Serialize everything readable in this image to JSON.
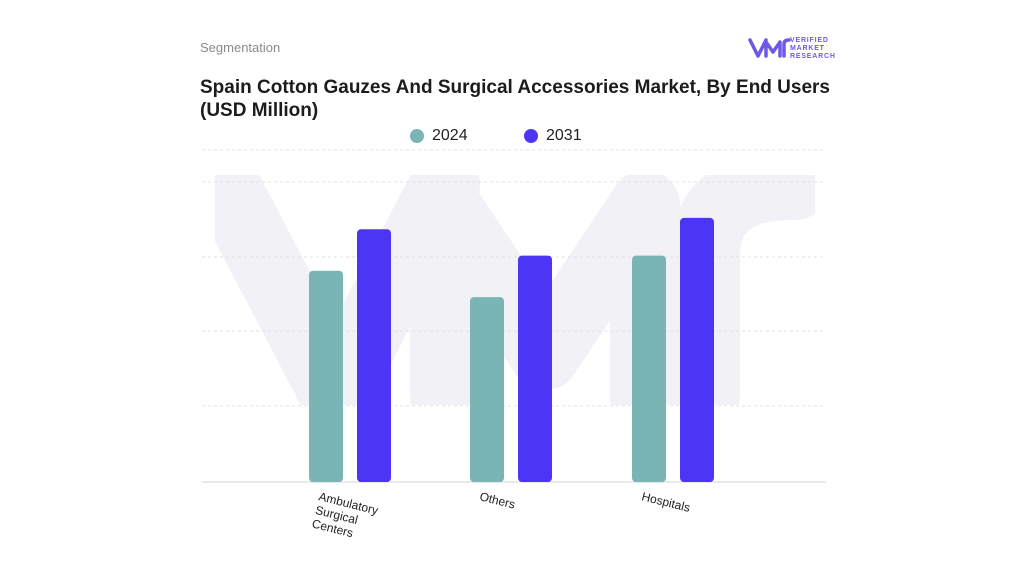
{
  "header": {
    "segment": "Segmentation",
    "title": "Spain Cotton Gauzes And Surgical Accessories Market, By End Users (USD Million)"
  },
  "logo": {
    "line1": "VERIFIED",
    "line2": "MARKET",
    "line3": "RESEARCH",
    "accent": "#6e58e8"
  },
  "chart_data": {
    "type": "bar",
    "categories": [
      "Ambulatory Surgical Centers",
      "Others",
      "Hospitals"
    ],
    "category_label_lines": [
      [
        "Ambulatory",
        "Surgical",
        "Centers"
      ],
      [
        "Others"
      ],
      [
        "Hospitals"
      ]
    ],
    "series": [
      {
        "name": "2024",
        "color": "#7ab5b6",
        "values": [
          56,
          49,
          60
        ]
      },
      {
        "name": "2031",
        "color": "#4c35f5",
        "values": [
          67,
          60,
          70
        ]
      }
    ],
    "ylim": [
      0,
      88
    ],
    "grid": true,
    "legend": "top-center",
    "xlabel": "",
    "ylabel": "",
    "title": ""
  }
}
